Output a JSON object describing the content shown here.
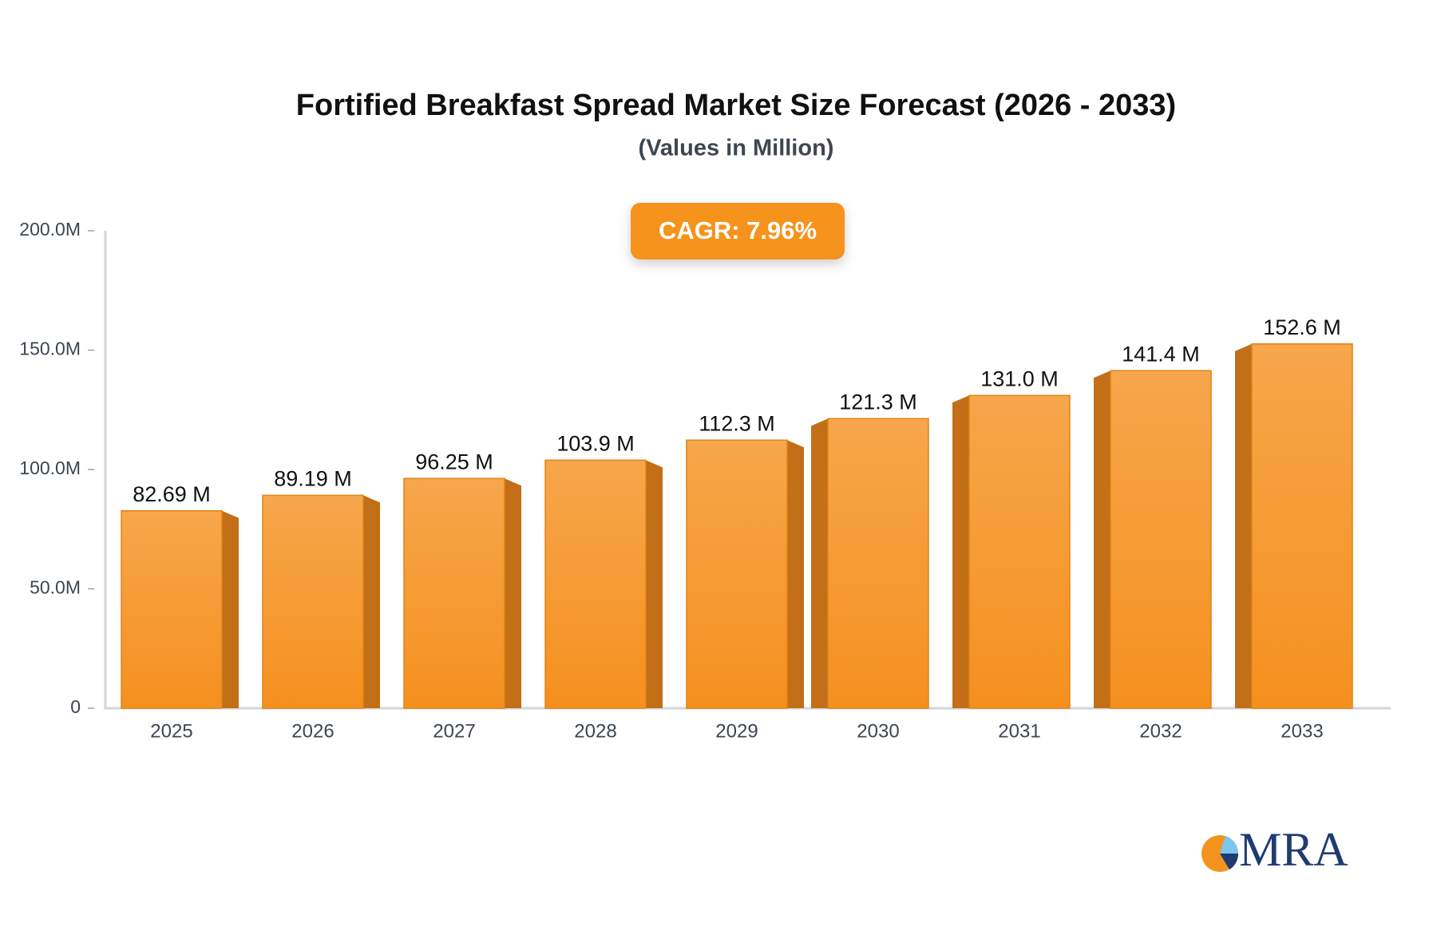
{
  "chart_data": {
    "type": "bar",
    "title": "Fortified Breakfast Spread Market Size Forecast (2026 - 2033)",
    "subtitle": "(Values in Million)",
    "annotation": "CAGR: 7.96%",
    "categories": [
      "2025",
      "2026",
      "2027",
      "2028",
      "2029",
      "2030",
      "2031",
      "2032",
      "2033"
    ],
    "values": [
      82.69,
      89.19,
      96.25,
      103.9,
      112.3,
      121.3,
      131.0,
      141.4,
      152.6
    ],
    "value_labels": [
      "82.69 M",
      "89.19 M",
      "96.25 M",
      "103.9 M",
      "112.3 M",
      "121.3 M",
      "131.0 M",
      "141.4 M",
      "152.6 M"
    ],
    "color": "#f5931f",
    "ylim": [
      0,
      200
    ],
    "yticks": [
      0,
      {
        "value": 50,
        "label": "50.0M"
      },
      {
        "value": 100,
        "label": "100.0M"
      },
      {
        "value": 150,
        "label": "150.0M"
      },
      {
        "value": 200,
        "label": "200.0M"
      }
    ],
    "grid": false
  },
  "logo": "MRA"
}
